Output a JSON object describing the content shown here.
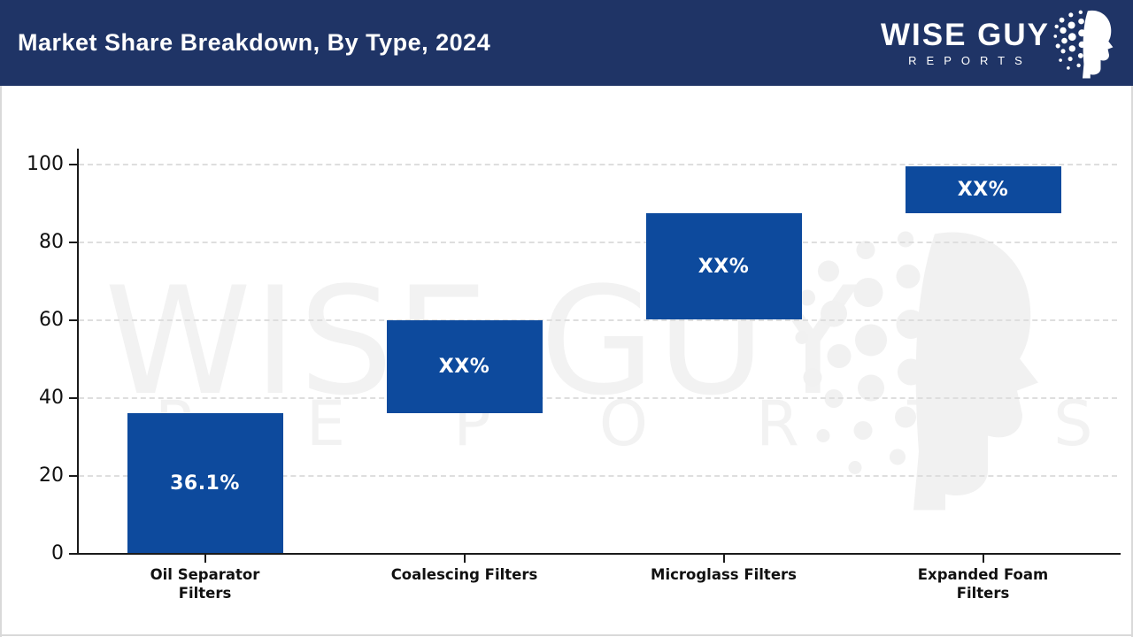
{
  "page": {
    "background": "#ffffff",
    "border_color": "#d9d9d9"
  },
  "header": {
    "bg_color": "#1f3466",
    "title": "Market Share Breakdown, By Type, 2024",
    "logo": {
      "primary": "WISE GUY",
      "secondary": "REPORTS"
    }
  },
  "watermark": {
    "primary": "WISE GUY",
    "secondary": "R E P O R T S"
  },
  "chart_data": {
    "type": "bar",
    "subtype": "floating_segment_waterfall",
    "title": "Market Share Breakdown, By Type, 2024",
    "categories": [
      "Oil Separator Filters",
      "Coalescing Filters",
      "Microglass Filters",
      "Expanded Foam Filters"
    ],
    "category_lines": [
      [
        "Oil Separator",
        "Filters"
      ],
      [
        "Coalescing Filters"
      ],
      [
        "Microglass Filters"
      ],
      [
        "Expanded Foam",
        "Filters"
      ]
    ],
    "segments": [
      {
        "category": "Oil Separator Filters",
        "start": 0,
        "end": 36.1,
        "label": "36.1%"
      },
      {
        "category": "Coalescing Filters",
        "start": 36.1,
        "end": 60.0,
        "label": "XX%"
      },
      {
        "category": "Microglass Filters",
        "start": 60.2,
        "end": 87.5,
        "label": "XX%"
      },
      {
        "category": "Expanded Foam Filters",
        "start": 87.5,
        "end": 99.5,
        "label": "XX%"
      }
    ],
    "xlabel": "",
    "ylabel": "",
    "ylim": [
      0,
      104
    ],
    "yticks": [
      0,
      20,
      40,
      60,
      80,
      100
    ],
    "grid": {
      "horizontal": true,
      "style": "dashed",
      "color": "#dedede"
    },
    "legend": "none",
    "bar_color": "#0d4a9d",
    "bar_label_color": "#ffffff"
  }
}
